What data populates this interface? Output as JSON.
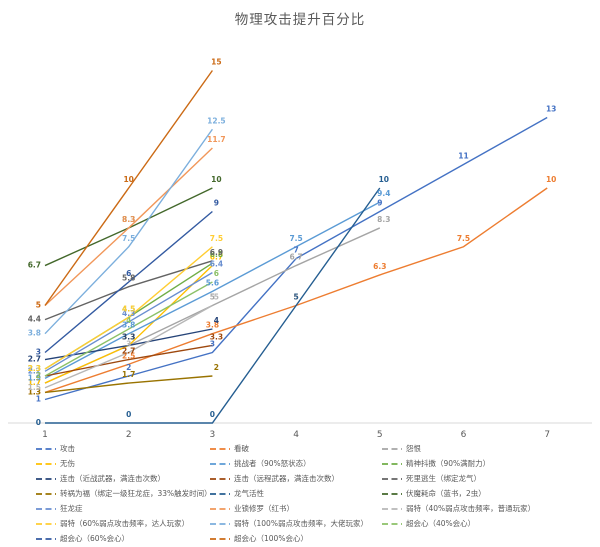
{
  "title": "物理攻击提升百分比",
  "chart_data": {
    "type": "line",
    "title": "物理攻击提升百分比",
    "xlabel": "",
    "ylabel": "",
    "x": [
      1,
      2,
      3,
      4,
      5,
      6,
      7
    ],
    "x_tick_labels": [
      "1",
      "2",
      "3",
      "4",
      "5",
      "6",
      "7"
    ],
    "ylim": [
      0,
      16
    ],
    "grid": false,
    "legend_position": "bottom",
    "legend_columns": 3,
    "axis_color": "#D9D9D9",
    "text_color": "#595959",
    "series": [
      {
        "name": "攻击",
        "color": "#4472C4",
        "values": [
          1,
          2,
          3,
          7,
          9,
          11,
          13
        ]
      },
      {
        "name": "看破",
        "color": "#ED7D31",
        "values": [
          1.3,
          2.5,
          3.8,
          5,
          6.3,
          7.5,
          10
        ]
      },
      {
        "name": "怨恨",
        "color": "#A5A5A5",
        "values": [
          1.7,
          3.3,
          5,
          6.7,
          8.3
        ]
      },
      {
        "name": "无伤",
        "color": "#FFC000",
        "values": [
          1.7,
          3.3,
          6.7
        ]
      },
      {
        "name": "挑战者（90%怒状态）",
        "color": "#5B9BD5",
        "values": [
          1.9,
          3.8,
          5.6,
          7.5,
          9.4
        ]
      },
      {
        "name": "精神抖擞（90%满耐力）",
        "color": "#70AD47",
        "values": [
          2.3,
          4.5,
          6.8
        ]
      },
      {
        "name": "连击（近战武器，满连击次数）",
        "color": "#264478",
        "values": [
          2.7,
          3.3,
          4
        ]
      },
      {
        "name": "连击（远程武器，满连击次数）",
        "color": "#9E480E",
        "values": [
          2,
          2.7,
          3.3
        ]
      },
      {
        "name": "死里逃生（绑定龙气）",
        "color": "#636363",
        "values": [
          4.4,
          5.8,
          6.9
        ]
      },
      {
        "name": "转祸为福（绑定一级狂龙症，33%触发时间）",
        "color": "#997300",
        "values": [
          1.3,
          1.7,
          2
        ]
      },
      {
        "name": "龙气活性",
        "color": "#255E91",
        "values": [
          0,
          0,
          0,
          5,
          10
        ]
      },
      {
        "name": "伏魔耗命（蓝书，2虫）",
        "color": "#43682B",
        "values": [
          6.7,
          8.3,
          10
        ]
      },
      {
        "name": "狂龙症",
        "color": "#698ED0",
        "values": [
          2.2,
          4.3,
          6.4
        ]
      },
      {
        "name": "业锁修罗（红书）",
        "color": "#F1975A",
        "values": [
          5,
          8.3,
          11.7
        ]
      },
      {
        "name": "弱特（40%弱点攻击频率，普通玩家）",
        "color": "#B7B7B7",
        "values": [
          1.5,
          3,
          5
        ]
      },
      {
        "name": "弱特（60%弱点攻击频率，达人玩家）",
        "color": "#FFCD33",
        "values": [
          2.3,
          4.5,
          7.5
        ]
      },
      {
        "name": "弱特（100%弱点攻击频率，大佬玩家）",
        "color": "#7CAFDD",
        "values": [
          3.8,
          7.5,
          12.5
        ]
      },
      {
        "name": "超会心（40%会心）",
        "color": "#8CC168",
        "values": [
          2,
          4,
          6
        ]
      },
      {
        "name": "超会心（60%会心）",
        "color": "#335AA1",
        "values": [
          3,
          6,
          9
        ]
      },
      {
        "name": "超会心（100%会心）",
        "color": "#CB6A15",
        "values": [
          5,
          10,
          15
        ]
      }
    ]
  }
}
